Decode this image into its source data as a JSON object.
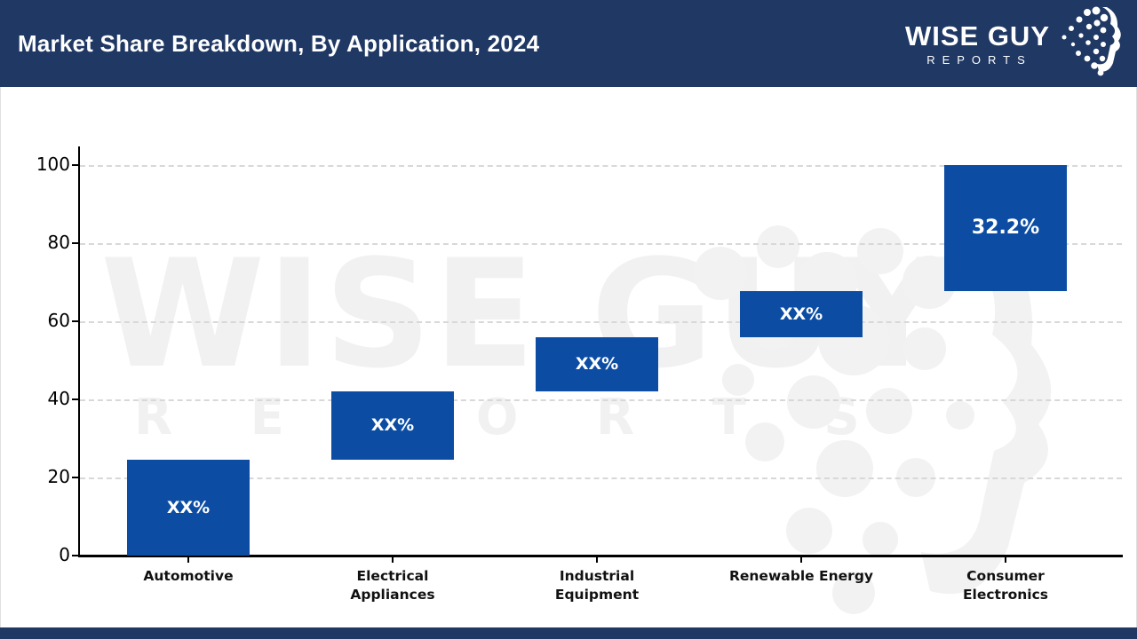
{
  "header": {
    "title": "Market Share Breakdown, By Application, 2024",
    "logo_line1": "WISE GUY",
    "logo_line2": "REPORTS"
  },
  "watermark": {
    "line1": "WISE GUY",
    "line2": "R E P O R T S"
  },
  "colors": {
    "header_bg": "#203864",
    "footer_bg": "#203864",
    "bar": "#0c4da3",
    "grid": "#d8d8d8",
    "axis": "#000000",
    "title_text": "#ffffff",
    "bar_label_text": "#ffffff",
    "watermark": "#f1f1f1"
  },
  "chart_data": {
    "type": "bar",
    "subtype": "waterfall",
    "title": "Market Share Breakdown, By Application, 2024",
    "categories": [
      "Automotive",
      "Electrical Appliances",
      "Industrial Equipment",
      "Renewable Energy",
      "Consumer Electronics"
    ],
    "tick_labels": [
      "Automotive",
      "Electrical\nAppliances",
      "Industrial\nEquipment",
      "Renewable Energy",
      "Consumer\nElectronics"
    ],
    "bars": [
      {
        "category": "Automotive",
        "start": 0,
        "end": 24.6,
        "label": "XX%"
      },
      {
        "category": "Electrical Appliances",
        "start": 24.6,
        "end": 42.1,
        "label": "XX%"
      },
      {
        "category": "Industrial Equipment",
        "start": 42.1,
        "end": 56.0,
        "label": "XX%"
      },
      {
        "category": "Renewable Energy",
        "start": 56.0,
        "end": 67.8,
        "label": "XX%"
      },
      {
        "category": "Consumer Electronics",
        "start": 67.8,
        "end": 100,
        "label": "32.2%"
      }
    ],
    "xlabel": "",
    "ylabel": "",
    "ylim": [
      0,
      100
    ],
    "yticks": [
      0,
      20,
      40,
      60,
      80,
      100
    ],
    "grid": "horizontal-dashed",
    "legend": "none"
  }
}
